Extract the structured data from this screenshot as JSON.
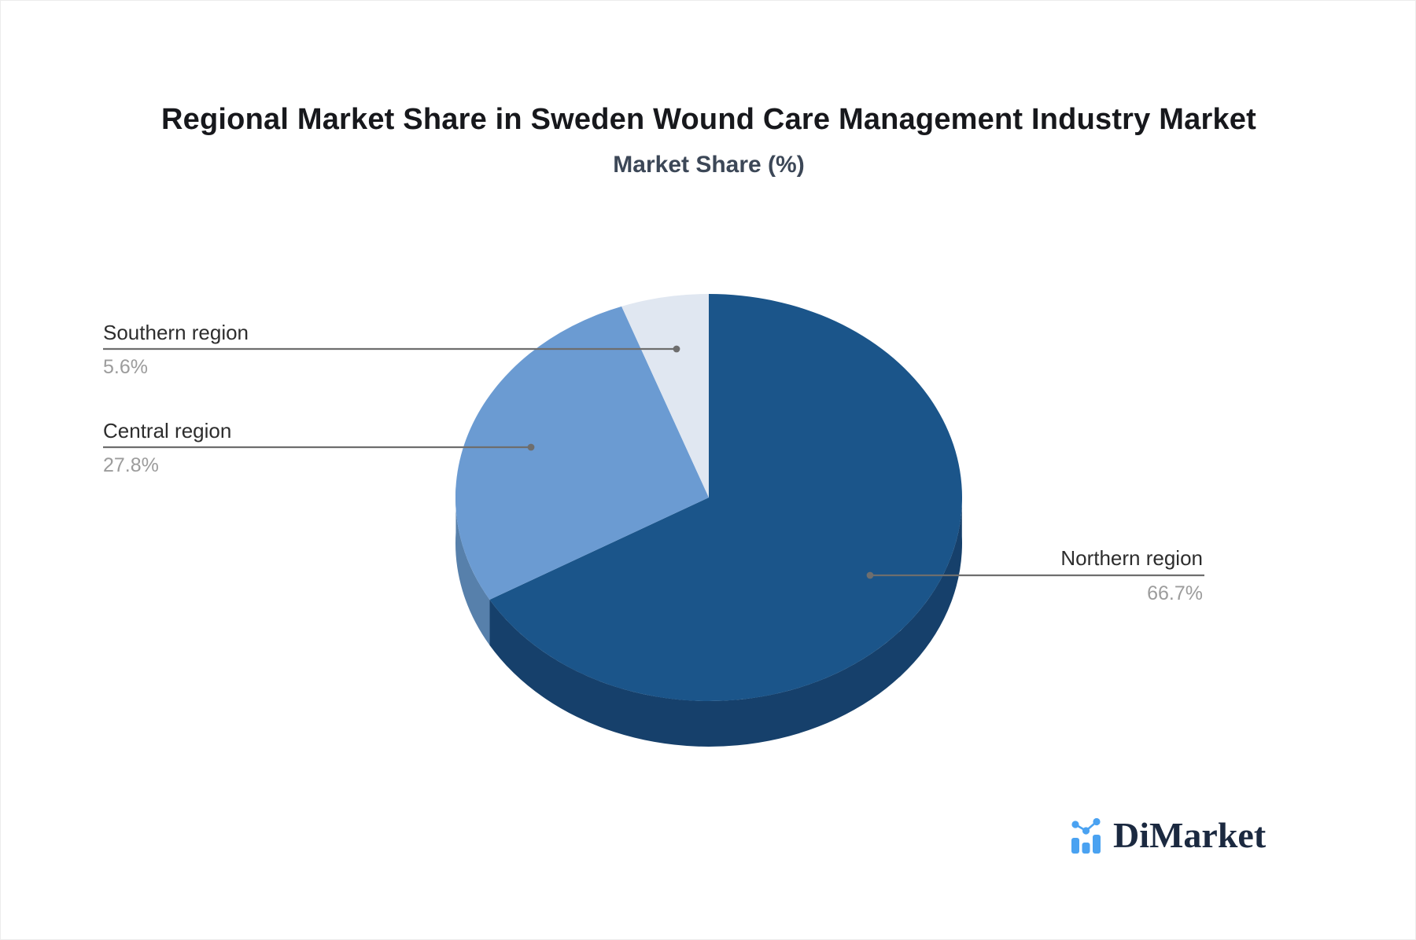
{
  "chart_data": {
    "type": "pie",
    "title": "Regional Market Share in Sweden Wound Care Management Industry Market",
    "subtitle": "Market Share (%)",
    "value_unit": "%",
    "effect_3d": true,
    "start_angle_deg": 0,
    "direction": "clockwise",
    "legend_position": "none",
    "label_style": "leader-line callouts with percentage",
    "segments": [
      {
        "label": "Northern region",
        "value": 66.7,
        "display": "66.7%",
        "color": "#1B558A",
        "side_color": "#16406B",
        "label_side": "right"
      },
      {
        "label": "Central region",
        "value": 27.8,
        "display": "27.8%",
        "color": "#6B9BD2",
        "side_color": "#5780AB",
        "label_side": "left"
      },
      {
        "label": "Southern region",
        "value": 5.6,
        "display": "5.6%",
        "color": "#E0E7F1",
        "side_color": "#C9D4E4",
        "label_side": "left"
      }
    ],
    "colors": {
      "title_text": "#17181C",
      "subtitle_text": "#3C4757",
      "label_text": "#2D2D2D",
      "value_text": "#9C9C9C",
      "leader_line": "#6E6E6E",
      "background": "#FFFFFF"
    }
  },
  "branding": {
    "logo_text": "DiMarket",
    "logo_icon": "bar-chart-trend-icon",
    "logo_text_color": "#1B2940",
    "logo_icon_color": "#4AA2F1"
  }
}
